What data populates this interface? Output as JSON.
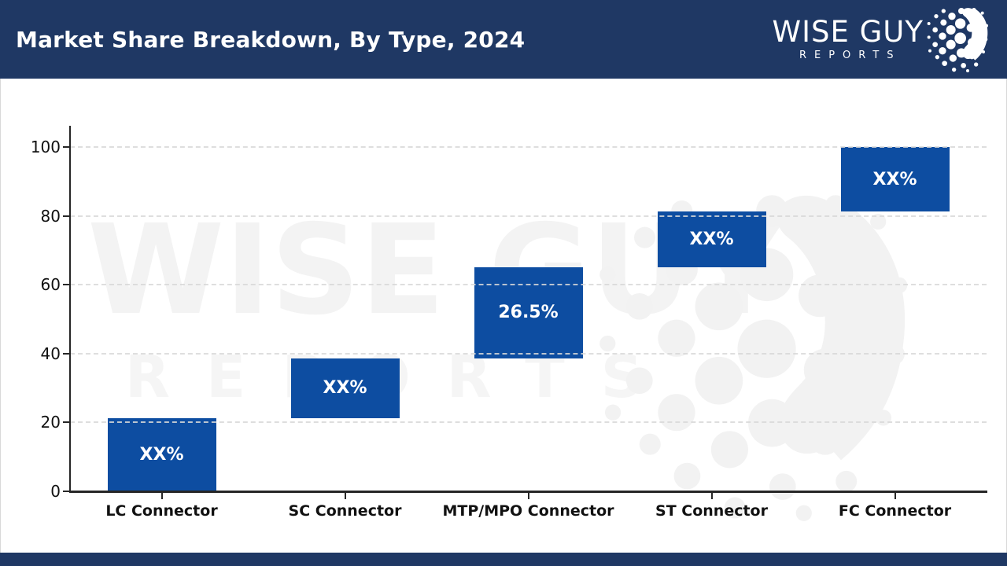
{
  "header": {
    "title": "Market Share Breakdown, By Type, 2024",
    "logo": {
      "line1": "WISE GUY",
      "line2": "REPORTS"
    }
  },
  "watermark": {
    "line1": "WISE GUY",
    "line2": "REPORTS"
  },
  "colors": {
    "header_bg": "#1f3864",
    "footer_bg": "#1f3864",
    "bar": "#0d4da1",
    "gridline": "#d9d9d9",
    "axis": "#262626",
    "bar_label": "#ffffff",
    "watermark": "#f3f3f3"
  },
  "chart_data": {
    "type": "bar",
    "subtype": "floating-waterfall",
    "title": "Market Share Breakdown, By Type, 2024",
    "categories": [
      "LC Connector",
      "SC Connector",
      "MTP/MPO Connector",
      "ST Connector",
      "FC Connector"
    ],
    "segments": [
      {
        "category": "LC Connector",
        "start": 0,
        "end": 21.3,
        "label": "XX%"
      },
      {
        "category": "SC Connector",
        "start": 21.3,
        "end": 38.6,
        "label": "XX%"
      },
      {
        "category": "MTP/MPO Connector",
        "start": 38.6,
        "end": 65.1,
        "label": "26.5%"
      },
      {
        "category": "ST Connector",
        "start": 65.1,
        "end": 81.2,
        "label": "XX%"
      },
      {
        "category": "FC Connector",
        "start": 81.2,
        "end": 100,
        "label": "XX%"
      }
    ],
    "xlabel": "",
    "ylabel": "",
    "ylim": [
      0,
      100
    ],
    "yticks": [
      0,
      20,
      40,
      60,
      80,
      100
    ],
    "grid": "horizontal-dashed",
    "legend": null
  }
}
